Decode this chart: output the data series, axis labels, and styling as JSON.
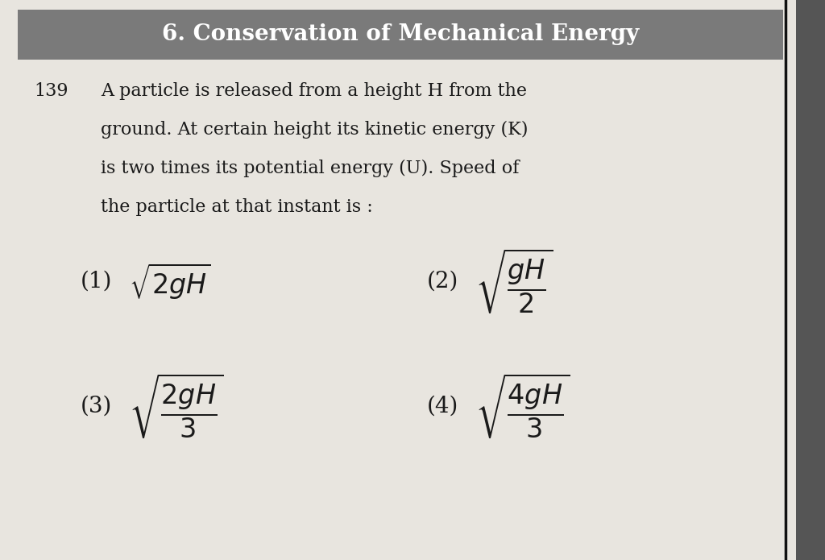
{
  "title": "6. Conservation of Mechanical Energy",
  "title_bg_color": "#7a7a7a",
  "title_text_color": "#ffffff",
  "bg_color": "#d8d5ce",
  "page_color": "#e8e5df",
  "question_number": "139",
  "question_text_line1": "A particle is released from a height H from the",
  "question_text_line2": "ground. At certain height its kinetic energy (K)",
  "question_text_line3": "is two times its potential energy (U). Speed of",
  "question_text_line4": "the particle at that instant is :",
  "option1_label": "(1)",
  "option2_label": "(2)",
  "option3_label": "(3)",
  "option4_label": "(4)",
  "font_size_title": 20,
  "font_size_question": 16,
  "font_size_options": 20,
  "font_size_qnum": 16,
  "right_line_color": "#222222",
  "text_color": "#1a1a1a"
}
